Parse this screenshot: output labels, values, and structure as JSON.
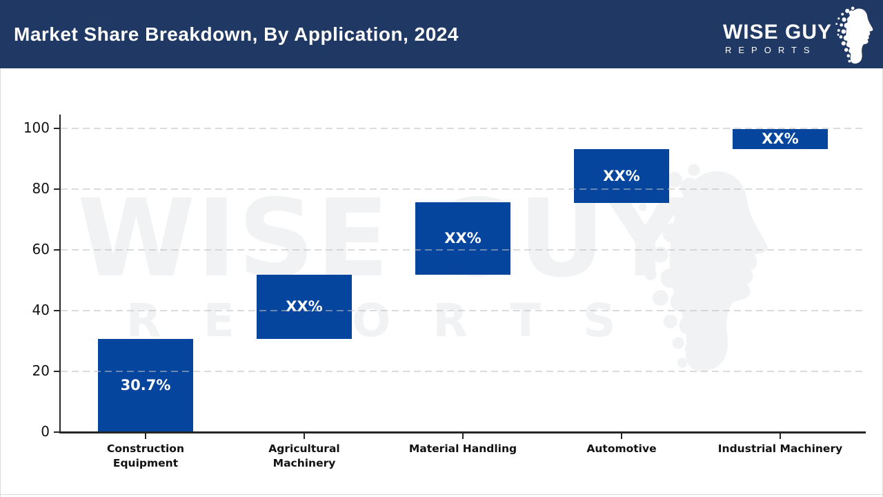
{
  "header": {
    "title": "Market Share Breakdown, By Application, 2024",
    "logo": {
      "line1": "WISE GUY",
      "line2": "REPORTS"
    }
  },
  "watermark": {
    "line1": "WISE GUY",
    "line2": "R E P O R T S"
  },
  "chart_data": {
    "type": "bar",
    "subtype": "waterfall-floating-segments",
    "title": "Market Share Breakdown, By Application, 2024",
    "categories": [
      "Construction Equipment",
      "Agricultural Machinery",
      "Material Handling",
      "Automotive",
      "Industrial Machinery"
    ],
    "segments": [
      [
        0,
        30.7
      ],
      [
        30.7,
        51.8
      ],
      [
        51.9,
        75.7
      ],
      [
        75.5,
        93.2
      ],
      [
        93.2,
        99.8
      ]
    ],
    "bar_labels": [
      "30.7%",
      "XX%",
      "XX%",
      "XX%",
      "XX%"
    ],
    "yticks": [
      0,
      20,
      40,
      60,
      80,
      100
    ],
    "ylim": [
      0,
      104.5
    ],
    "xlabel": "",
    "ylabel": "",
    "grid": "horizontal-dashed-over-bars",
    "legend": "none",
    "bar_color": "#05459e",
    "bar_label_color": "#ffffff",
    "header_color": "#1f3864",
    "watermark_color": "#f1f2f3"
  }
}
